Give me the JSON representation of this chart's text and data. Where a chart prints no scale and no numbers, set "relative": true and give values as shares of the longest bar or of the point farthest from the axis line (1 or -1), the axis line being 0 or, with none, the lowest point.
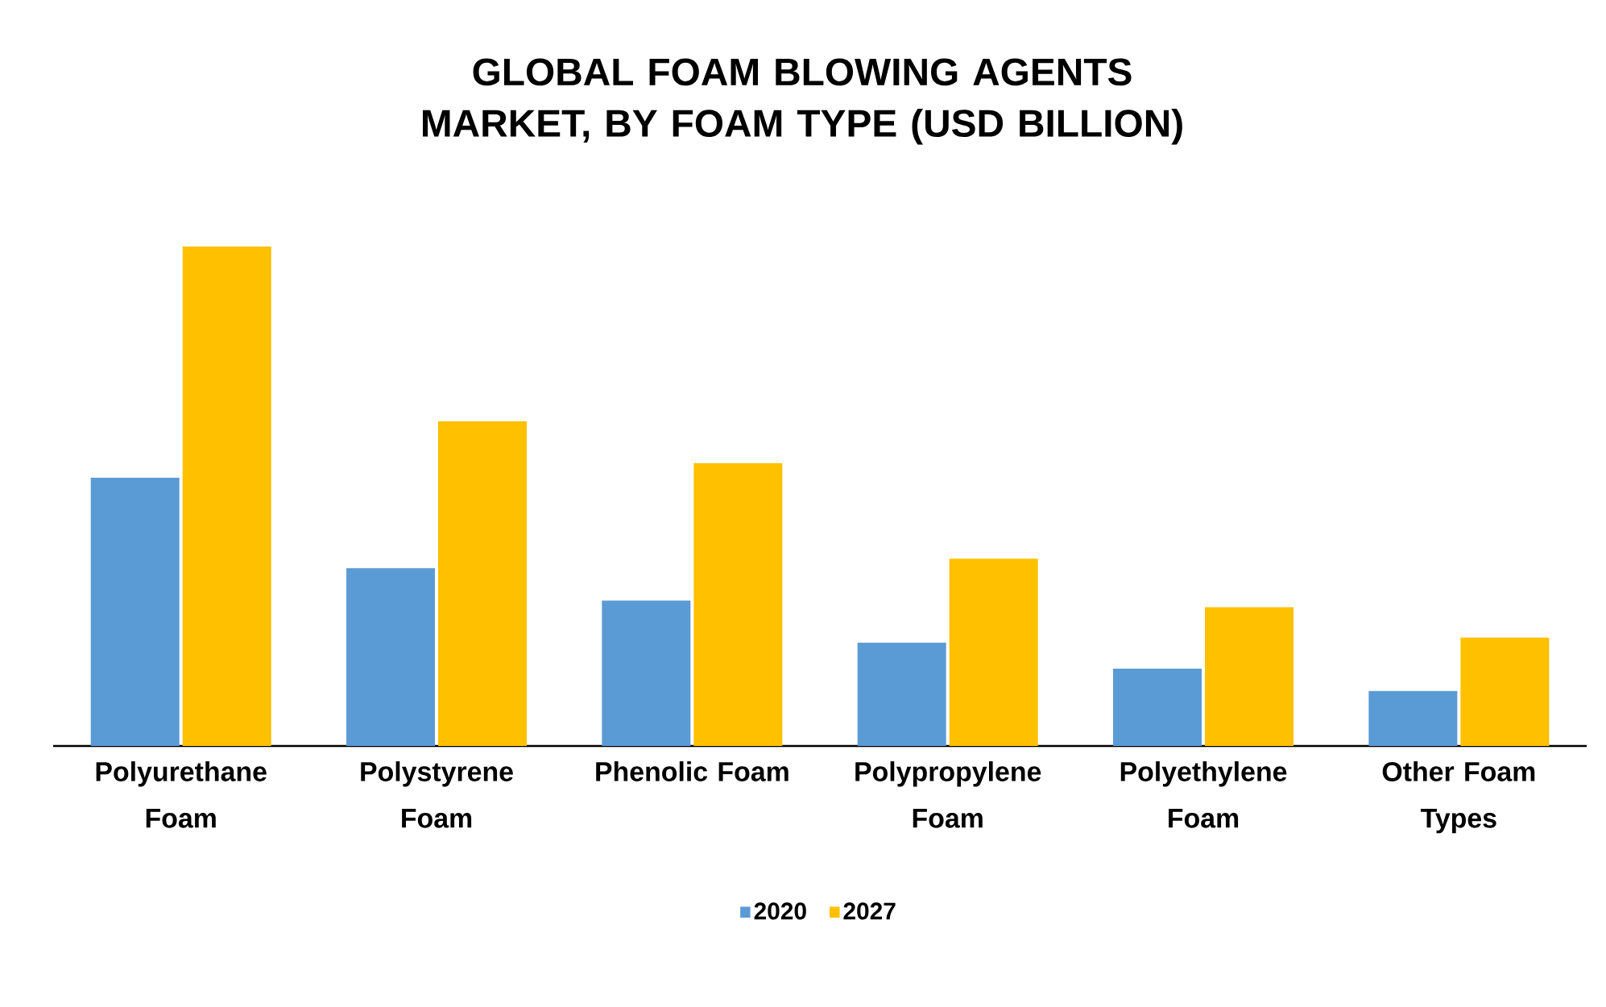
{
  "chart_data": {
    "type": "bar",
    "title": "GLOBAL FOAM BLOWING AGENTS MARKET, BY FOAM TYPE (USD BILLION)",
    "categories": [
      "Polyurethane Foam",
      "Polystyrene Foam",
      "Phenolic Foam",
      "Polypropylene Foam",
      "Polyethylene Foam",
      "Other Foam Types"
    ],
    "relative": true,
    "series": [
      {
        "name": "2020",
        "color": "#5b9bd5",
        "values": [
          0.537,
          0.356,
          0.291,
          0.207,
          0.155,
          0.11
        ]
      },
      {
        "name": "2027",
        "color": "#ffc000",
        "values": [
          1.0,
          0.65,
          0.566,
          0.375,
          0.278,
          0.217
        ]
      }
    ],
    "legend": "bottom"
  }
}
